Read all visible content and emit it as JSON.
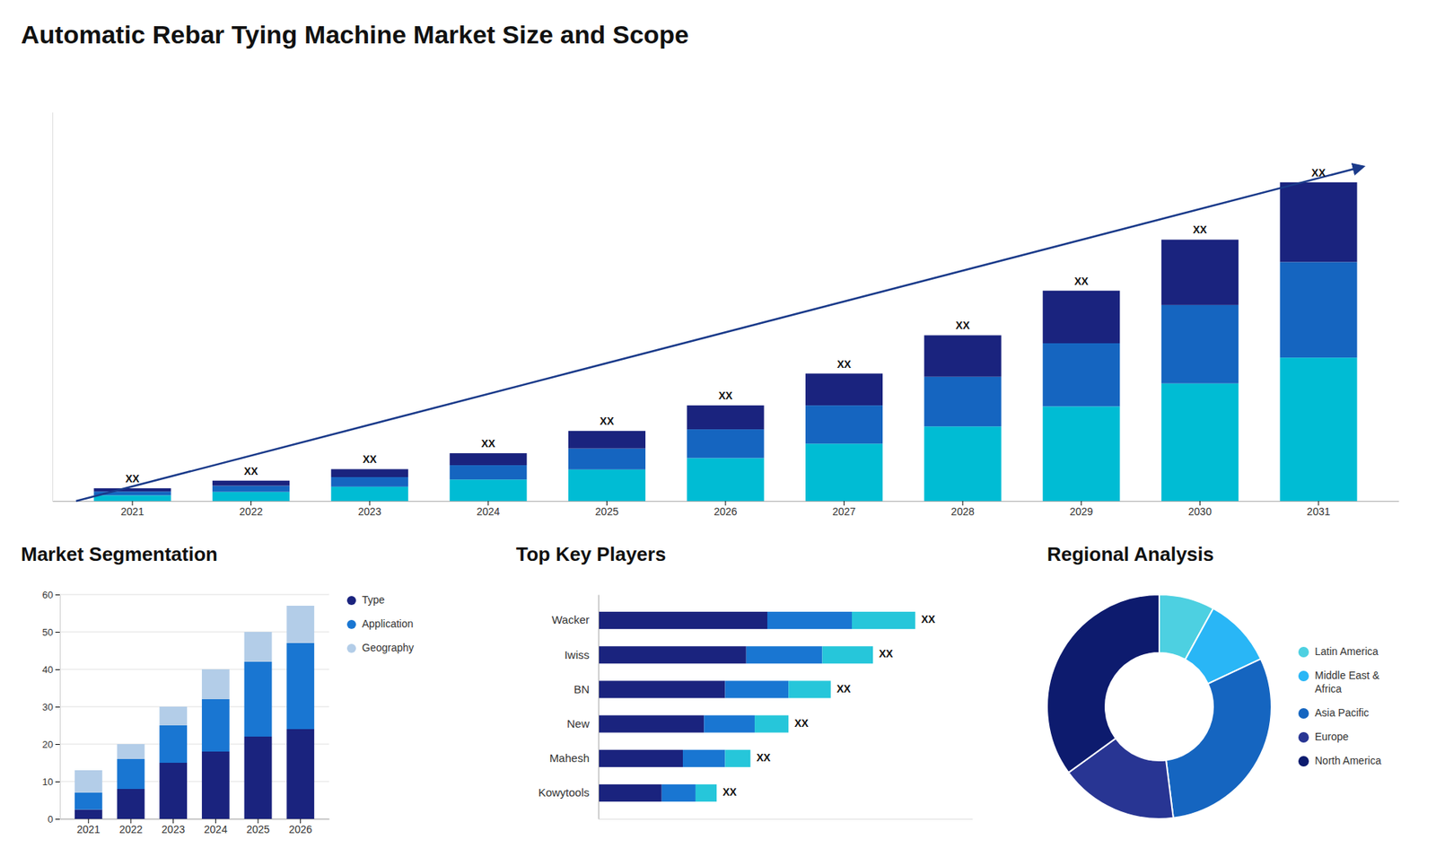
{
  "chart_data": [
    {
      "type": "bar",
      "title": "Automatic Rebar Tying Machine Market Size and Scope",
      "stacked": true,
      "categories": [
        "2021",
        "2022",
        "2023",
        "2024",
        "2025",
        "2026",
        "2027",
        "2028",
        "2029",
        "2030",
        "2031"
      ],
      "series": [
        {
          "color": "#00bcd4",
          "values": [
            0.9,
            1.44,
            2.25,
            3.375,
            4.95,
            6.75,
            9,
            11.7,
            14.85,
            18.45,
            22.5
          ]
        },
        {
          "color": "#1565c0",
          "values": [
            0.6,
            0.96,
            1.5,
            2.25,
            3.3,
            4.5,
            6,
            7.8,
            9.9,
            12.3,
            15
          ]
        },
        {
          "color": "#1a237e",
          "values": [
            0.5,
            0.8,
            1.25,
            1.875,
            2.75,
            3.75,
            5,
            6.5,
            8.25,
            10.25,
            12.5
          ]
        }
      ],
      "annotations": [
        "XX",
        "XX",
        "XX",
        "XX",
        "XX",
        "XX",
        "XX",
        "XX",
        "XX",
        "XX",
        "XX"
      ],
      "ylim": [
        0,
        61
      ],
      "tick_labels": "x"
    },
    {
      "type": "bar",
      "title": "Market Segmentation",
      "stacked": true,
      "categories": [
        "2021",
        "2022",
        "2023",
        "2024",
        "2025",
        "2026"
      ],
      "series": [
        {
          "name": "Type",
          "color": "#1a237e",
          "values": [
            2.5,
            8,
            15,
            18,
            22,
            24
          ]
        },
        {
          "name": "Application",
          "color": "#1976d2",
          "values": [
            4.5,
            8,
            10,
            14,
            20,
            23
          ]
        },
        {
          "name": "Geography",
          "color": "#b3cde8",
          "values": [
            6,
            4,
            5,
            8,
            8,
            10
          ]
        }
      ],
      "ylim": [
        0,
        60
      ],
      "yticks": [
        0,
        10,
        20,
        30,
        40,
        50,
        60
      ],
      "grid": true,
      "legend": "right"
    },
    {
      "type": "bar",
      "title": "Top Key Players",
      "orientation": "horizontal",
      "stacked": true,
      "categories": [
        "Wacker",
        "Iwiss",
        "BN",
        "New",
        "Mahesh",
        "Kowytools"
      ],
      "series": [
        {
          "color": "#1a237e",
          "values": [
            40,
            35,
            30,
            25,
            20,
            15
          ]
        },
        {
          "color": "#1976d2",
          "values": [
            20,
            18,
            15,
            12,
            10,
            8
          ]
        },
        {
          "color": "#26c6da",
          "values": [
            15,
            12,
            10,
            8,
            6,
            5
          ]
        }
      ],
      "annotations": [
        "XX",
        "XX",
        "XX",
        "XX",
        "XX",
        "XX"
      ],
      "xlim": [
        0,
        88.5
      ],
      "tick_labels": "y"
    },
    {
      "type": "pie",
      "title": "Regional Analysis",
      "categories": [
        "Latin America",
        "Middle East &\nAfrica",
        "Asia Pacific",
        "Europe",
        "North America"
      ],
      "values": [
        8,
        10,
        30,
        17,
        35
      ],
      "colors": [
        "#4dd0e1",
        "#29b6f6",
        "#1565c0",
        "#283593",
        "#0d1b6e"
      ],
      "legend": "right"
    }
  ]
}
